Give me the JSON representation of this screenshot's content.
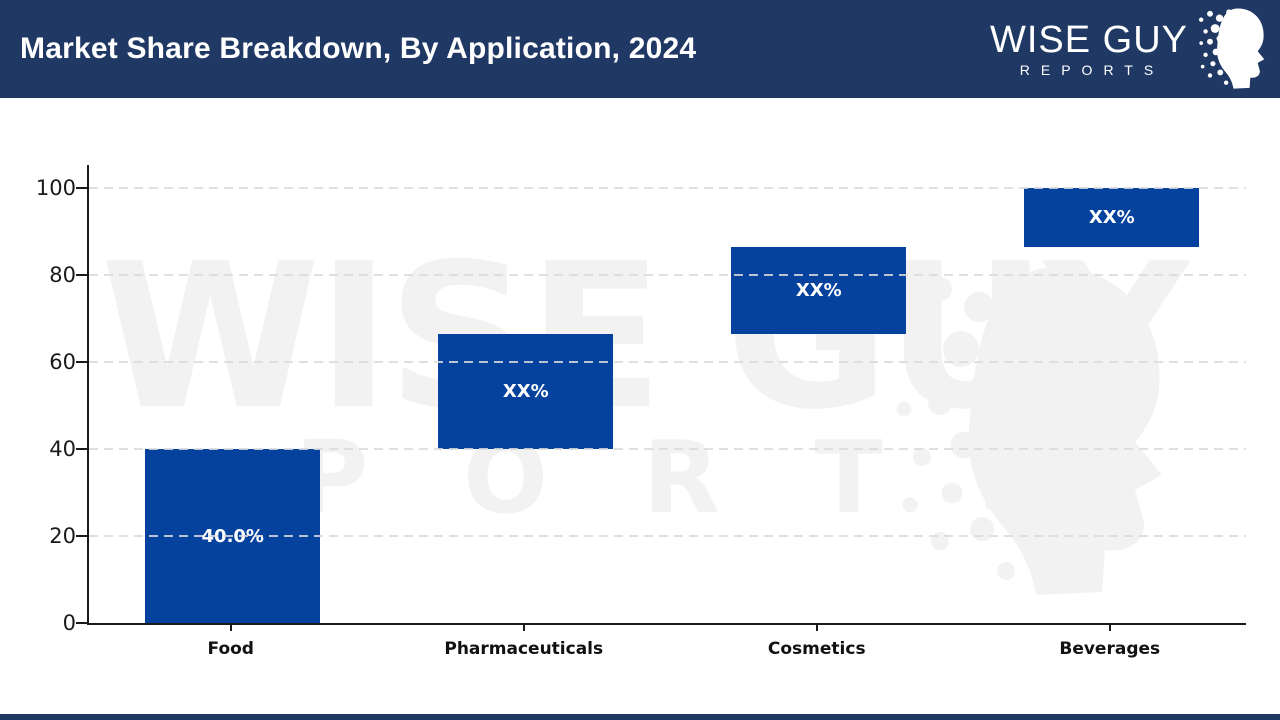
{
  "header": {
    "title": "Market Share Breakdown, By Application, 2024",
    "background_color": "#1f3864",
    "logo": {
      "line1": "WISE GUY",
      "line2": "REPORTS"
    }
  },
  "watermark": {
    "line1": "WISE GUY",
    "line2": "P O R T S"
  },
  "chart_data": {
    "type": "bar",
    "variant": "waterfall",
    "title": "Market Share Breakdown, By Application, 2024",
    "categories": [
      "Food",
      "Pharmaceuticals",
      "Cosmetics",
      "Beverages"
    ],
    "segments": [
      {
        "category": "Food",
        "start": 0,
        "end": 40,
        "value": 40,
        "label": "40.0%"
      },
      {
        "category": "Pharmaceuticals",
        "start": 40,
        "end": 66.5,
        "value": 26.5,
        "label": "XX%"
      },
      {
        "category": "Cosmetics",
        "start": 66.5,
        "end": 86.5,
        "value": 20,
        "label": "XX%"
      },
      {
        "category": "Beverages",
        "start": 86.5,
        "end": 100,
        "value": 13.5,
        "label": "XX%"
      }
    ],
    "xlabel": "",
    "ylabel": "",
    "ylim": [
      0,
      105
    ],
    "yticks": [
      0,
      20,
      40,
      60,
      80,
      100
    ],
    "grid": "horizontal dashed",
    "legend": "none",
    "bar_color": "#05429e",
    "bar_label_color": "#ffffff",
    "axis_color": "#1a1a1a",
    "grid_color": "#dbdbdb"
  }
}
